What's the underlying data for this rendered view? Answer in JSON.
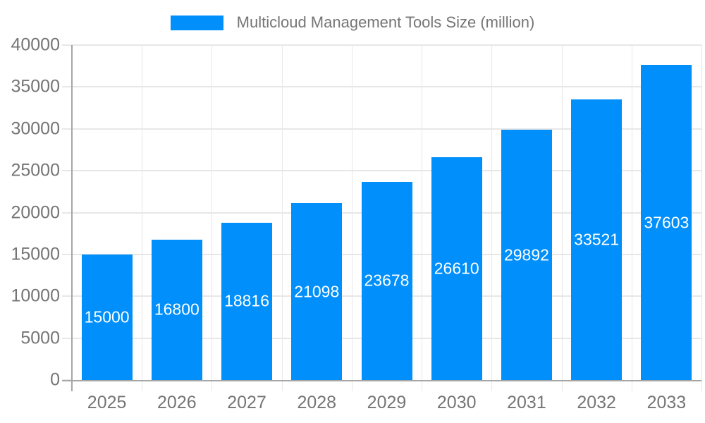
{
  "chart_data": {
    "type": "bar",
    "title": "Multicloud Management Tools Size (million)",
    "legend": {
      "label": "Multicloud Management Tools Size (million)",
      "position": "top"
    },
    "categories": [
      "2025",
      "2026",
      "2027",
      "2028",
      "2029",
      "2030",
      "2031",
      "2032",
      "2033"
    ],
    "series": [
      {
        "name": "Multicloud Management Tools Size (million)",
        "values": [
          15000,
          16800,
          18816,
          21098,
          23678,
          26610,
          29892,
          33521,
          37603
        ]
      }
    ],
    "bar_value_labels": [
      "15000",
      "16800",
      "18816",
      "21098",
      "23678",
      "26610",
      "29892",
      "33521",
      "37603"
    ],
    "xlabel": "",
    "ylabel": "",
    "ylim": [
      0,
      40000
    ],
    "ytick_step": 5000,
    "ytick_labels": [
      "0",
      "5000",
      "10000",
      "15000",
      "20000",
      "25000",
      "30000",
      "35000",
      "40000"
    ],
    "grid": true,
    "colors": {
      "bar": "#008FFB",
      "bar_label_text": "#ffffff",
      "axis_text": "#757575",
      "grid_line": "#e7e7e7",
      "axis_line": "#a6a6a6",
      "background": "#ffffff"
    }
  }
}
